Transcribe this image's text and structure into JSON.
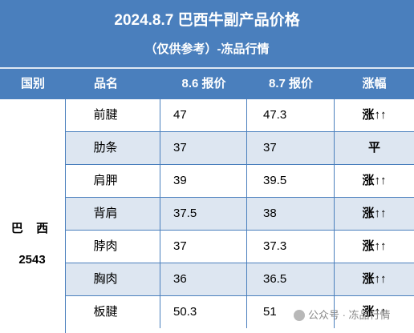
{
  "header": {
    "title": "2024.8.7 巴西牛副产品价格",
    "subtitle": "（仅供参考）-冻品行情"
  },
  "columns": [
    "国别",
    "品名",
    "8.6 报价",
    "8.7 报价",
    "涨幅"
  ],
  "country": {
    "name": "巴 西",
    "code": "2543"
  },
  "rows": [
    {
      "name": "前腱",
      "p1": "47",
      "p2": "47.3",
      "trend": "涨↑↑",
      "dir": "up"
    },
    {
      "name": "肋条",
      "p1": "37",
      "p2": "37",
      "trend": "平",
      "dir": "flat"
    },
    {
      "name": "肩胛",
      "p1": "39",
      "p2": "39.5",
      "trend": "涨↑↑",
      "dir": "up"
    },
    {
      "name": "背肩",
      "p1": "37.5",
      "p2": "38",
      "trend": "涨↑↑",
      "dir": "up"
    },
    {
      "name": "脖肉",
      "p1": "37",
      "p2": "37.3",
      "trend": "涨↑↑",
      "dir": "up"
    },
    {
      "name": "胸肉",
      "p1": "36",
      "p2": "36.5",
      "trend": "涨↑↑",
      "dir": "up"
    },
    {
      "name": "板腱",
      "p1": "50.3",
      "p2": "51",
      "trend": "涨↑↑",
      "dir": "up"
    }
  ],
  "watermark": "公众号 · 冻品行情",
  "colors": {
    "header_bg": "#4a7fbd",
    "alt_row": "#dde6f1",
    "up": "#e0161b"
  },
  "icons": {
    "watermark": "wechat-icon"
  }
}
